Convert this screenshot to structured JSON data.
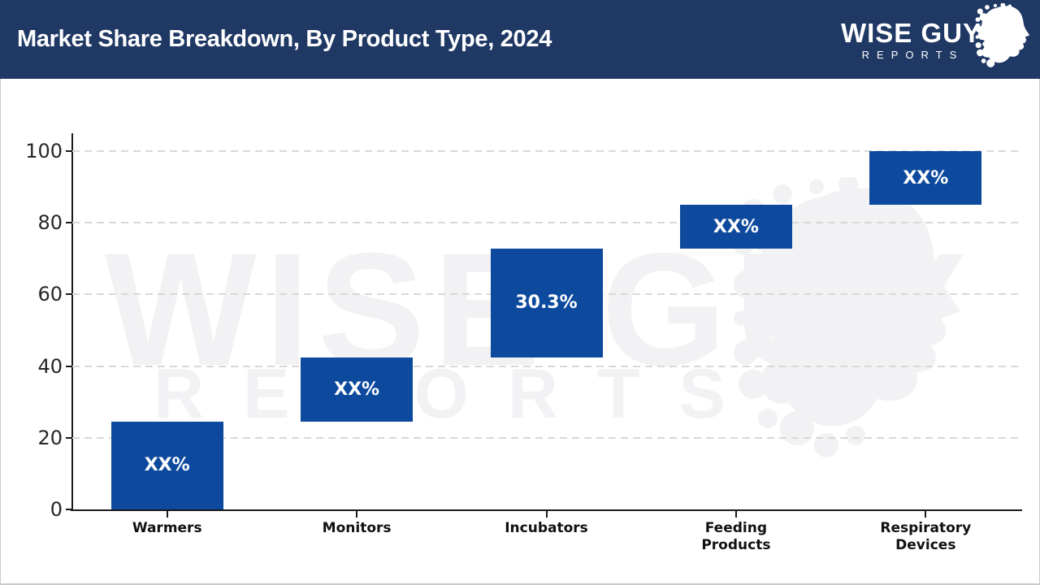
{
  "header": {
    "title": "Market Share Breakdown, By Product Type, 2024",
    "logo": {
      "line1": "WISE GUY",
      "line2": "REPORTS"
    }
  },
  "watermark": {
    "line1": "WISE GUY",
    "line2": "REPORTS"
  },
  "colors": {
    "header_bg": "#1f3864",
    "bar": "#0d4a9e",
    "bar_label": "#ffffff",
    "grid": "#d8d8d8",
    "axis": "#1a1a1a",
    "watermark": "#f2f2f4"
  },
  "chart_data": {
    "type": "bar",
    "subtype": "waterfall",
    "title": "Market Share Breakdown, By Product Type, 2024",
    "xlabel": "",
    "ylabel": "",
    "categories": [
      "Warmers",
      "Monitors",
      "Incubators",
      "Feeding Products",
      "Respiratory Devices"
    ],
    "segments": [
      {
        "start": 0,
        "end": 24.5,
        "value": 24.5,
        "label": "XX%"
      },
      {
        "start": 24.5,
        "end": 42.5,
        "value": 18.0,
        "label": "XX%"
      },
      {
        "start": 42.5,
        "end": 72.8,
        "value": 30.3,
        "label": "30.3%"
      },
      {
        "start": 72.8,
        "end": 85.0,
        "value": 12.2,
        "label": "XX%"
      },
      {
        "start": 85.0,
        "end": 100.0,
        "value": 15.0,
        "label": "XX%"
      }
    ],
    "yticks": [
      0,
      20,
      40,
      60,
      80,
      100
    ],
    "ylim": [
      0,
      105
    ],
    "grid": "horizontal-dashed",
    "legend": "none"
  }
}
